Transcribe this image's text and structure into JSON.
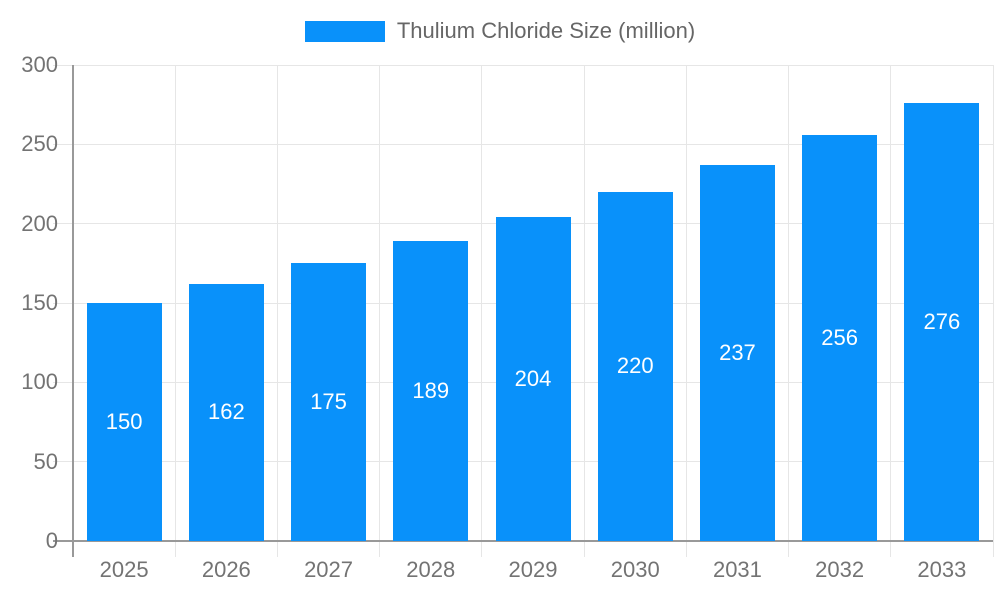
{
  "chart_data": {
    "type": "bar",
    "title": "",
    "legend": "Thulium Chloride Size (million)",
    "legend_position": "top-center",
    "categories": [
      "2025",
      "2026",
      "2027",
      "2028",
      "2029",
      "2030",
      "2031",
      "2032",
      "2033"
    ],
    "series": [
      {
        "name": "Thulium Chloride Size (million)",
        "values": [
          150,
          162,
          175,
          189,
          204,
          220,
          237,
          256,
          276
        ]
      }
    ],
    "values": [
      150,
      162,
      175,
      189,
      204,
      220,
      237,
      256,
      276
    ],
    "xlabel": "",
    "ylabel": "",
    "ylim": [
      0,
      300
    ],
    "yticks": [
      0,
      50,
      100,
      150,
      200,
      250,
      300
    ],
    "grid": true,
    "bar_value_labels_inside": true,
    "colors": {
      "bar": "#0991fa",
      "grid": "#e6e6e6",
      "axis": "#999999",
      "tick_text": "#737373",
      "legend_text": "#666666",
      "bar_label_text": "#ffffff",
      "background": "#ffffff"
    }
  }
}
